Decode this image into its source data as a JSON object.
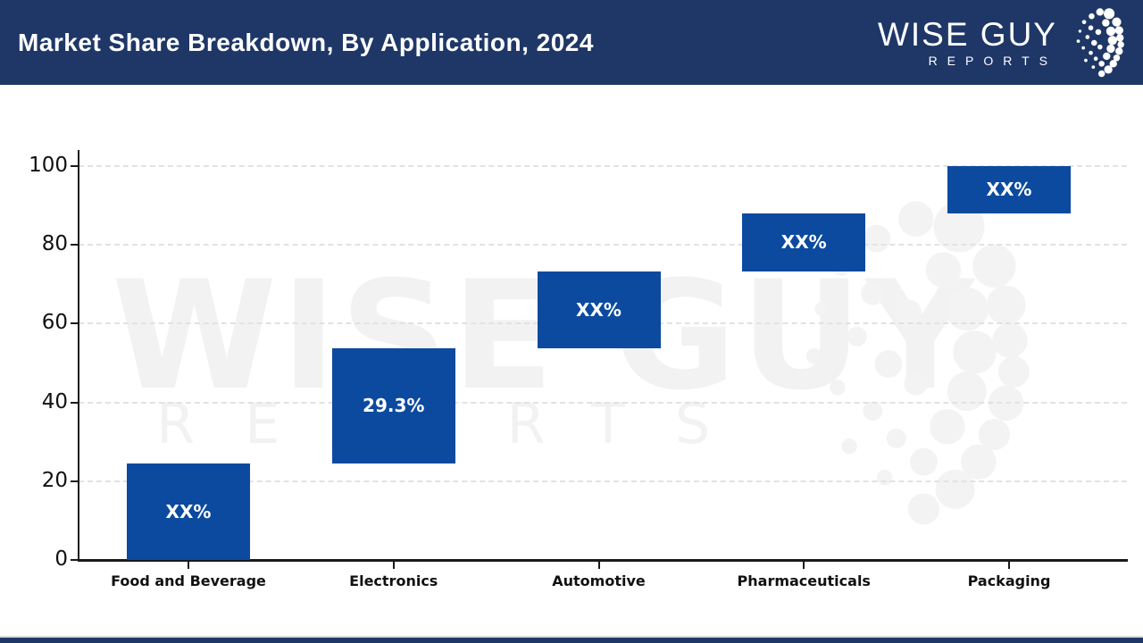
{
  "header": {
    "title": "Market Share Breakdown, By Application, 2024",
    "bg_color": "#1f3767",
    "logo": {
      "line1": "WISE GUY",
      "line2": "REPORTS"
    }
  },
  "watermark": {
    "line1": "WISE GUY",
    "line2": "REPORTS"
  },
  "chart_data": {
    "type": "bar",
    "subtype": "waterfall-floating-bars",
    "title": "Market Share Breakdown, By Application, 2024",
    "categories": [
      "Food and Beverage",
      "Electronics",
      "Automotive",
      "Pharmaceuticals",
      "Packaging"
    ],
    "bars": [
      {
        "category": "Food and Beverage",
        "start": 0,
        "end": 24.5,
        "label": "XX%"
      },
      {
        "category": "Electronics",
        "start": 24.5,
        "end": 53.8,
        "label": "29.3%"
      },
      {
        "category": "Automotive",
        "start": 53.8,
        "end": 73.3,
        "label": "XX%"
      },
      {
        "category": "Pharmaceuticals",
        "start": 73.3,
        "end": 88,
        "label": "XX%"
      },
      {
        "category": "Packaging",
        "start": 88,
        "end": 100,
        "label": "XX%"
      }
    ],
    "xlabel": "",
    "ylabel": "",
    "ylim": [
      0,
      100
    ],
    "yticks": [
      0,
      20,
      40,
      60,
      80,
      100
    ],
    "grid": "horizontal-dashed",
    "legend": "none",
    "bar_color": "#0b4a9f",
    "bar_label_color": "#ffffff",
    "axis_color": "#1a1a1a",
    "gridline_color": "#e2e2e2"
  },
  "footer": {
    "bar_color": "#1f3767"
  }
}
